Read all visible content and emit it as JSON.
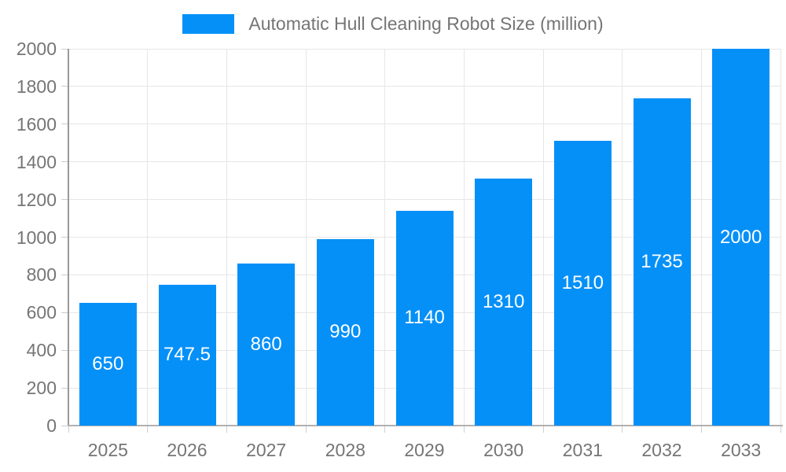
{
  "chart_data": {
    "type": "bar",
    "title": "Automatic Hull Cleaning Robot Size (million)",
    "categories": [
      "2025",
      "2026",
      "2027",
      "2028",
      "2029",
      "2030",
      "2031",
      "2032",
      "2033"
    ],
    "values": [
      650,
      747.5,
      860,
      990,
      1140,
      1310,
      1510,
      1735,
      2000
    ],
    "value_labels": [
      "650",
      "747.5",
      "860",
      "990",
      "1140",
      "1310",
      "1510",
      "1735",
      "2000"
    ],
    "xlabel": "",
    "ylabel": "",
    "ylim": [
      0,
      2000
    ],
    "ytick_step": 200,
    "grid": true,
    "legend_position": "top-center",
    "bar_color": "#0590F8",
    "bar_value_label_color": "#ffffff",
    "axis_text_color": "#757575",
    "gridline_color": "#e6e6e6"
  }
}
